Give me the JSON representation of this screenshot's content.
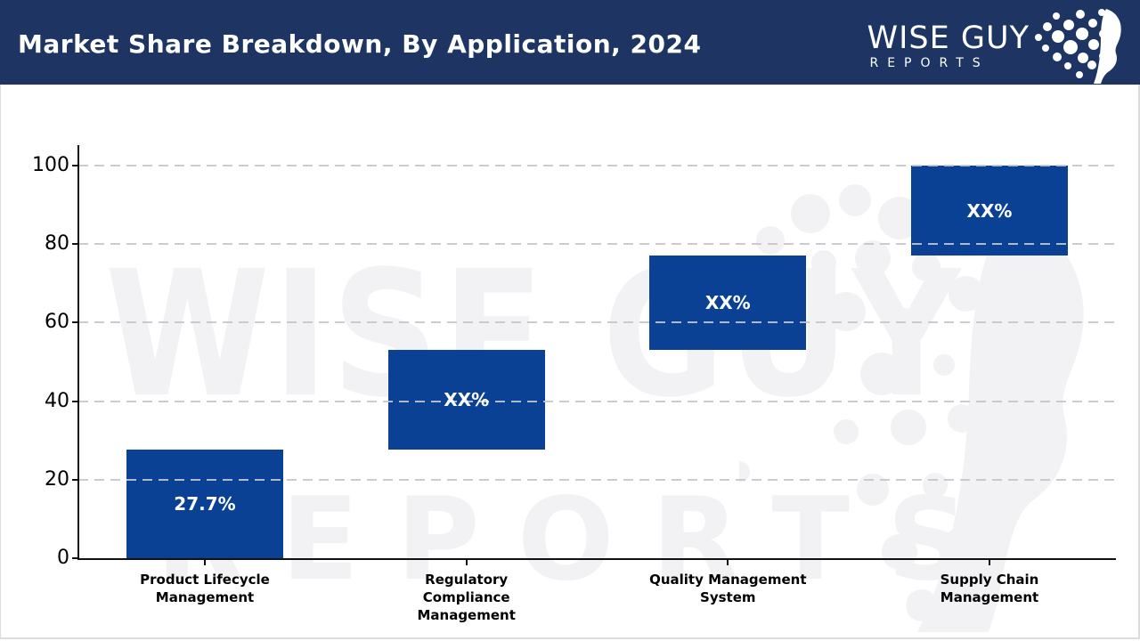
{
  "header": {
    "title": "Market Share Breakdown, By Application, 2024",
    "bg_color": "#1e3563",
    "logo": {
      "line1": "WISE GUY",
      "line2": "REPORTS"
    }
  },
  "watermark": {
    "line1": "WISE GUY",
    "line2": "REPORTS"
  },
  "chart_data": {
    "type": "bar",
    "subtype": "waterfall-floating-bars",
    "title": "Market Share Breakdown, By Application, 2024",
    "categories": [
      [
        "Product Lifecycle",
        "Management"
      ],
      [
        "Regulatory",
        "Compliance",
        "Management"
      ],
      [
        "Quality Management",
        "System"
      ],
      [
        "Supply Chain",
        "Management"
      ]
    ],
    "segments": [
      {
        "label": "27.7%",
        "start": 0,
        "end": 27.7
      },
      {
        "label": "XX%",
        "start": 27.7,
        "end": 53
      },
      {
        "label": "XX%",
        "start": 53,
        "end": 77
      },
      {
        "label": "XX%",
        "start": 77,
        "end": 100
      }
    ],
    "ylim": [
      0,
      100
    ],
    "yticks": [
      0,
      20,
      40,
      60,
      80,
      100
    ],
    "xlabel": "",
    "ylabel": "",
    "grid": "dashed horizontal",
    "legend": "none",
    "bar_color": "#0a4194",
    "grid_color": "#d8d8d8",
    "axis_color": "#111111"
  }
}
